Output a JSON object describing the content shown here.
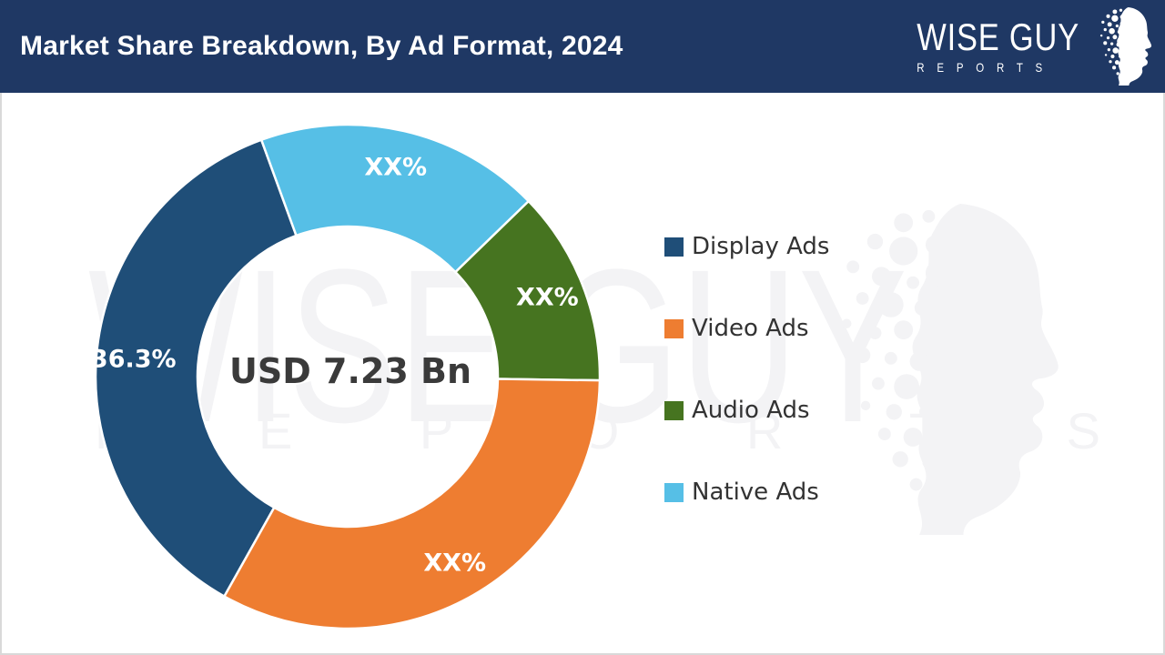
{
  "header": {
    "title": "Market Share Breakdown, By Ad Format, 2024",
    "logo": {
      "line1": "WISE GUY",
      "line2": "R E P O R T S"
    }
  },
  "watermark": {
    "line1": "WISE GUY",
    "line2": "R E P O R T S"
  },
  "palette": {
    "header_bg": "#1F3864",
    "display": "#1F4E78",
    "video": "#EE7D31",
    "audio": "#467420",
    "native": "#56BFE6",
    "slice_label_text": "#FFFFFF",
    "center_text": "#3A3A3A",
    "legend_text": "#333333",
    "watermark": "#F3F3F5",
    "page_border": "#D9D9D9"
  },
  "chart_data": {
    "type": "donut",
    "title": "Market Share Breakdown, By Ad Format, 2024",
    "center_label": "USD 7.23 Bn",
    "start_angle_deg": 209.3,
    "clockwise": true,
    "segments": [
      {
        "name": "Display Ads",
        "value_pct": 36.3,
        "label": "36.3%",
        "color_key": "display"
      },
      {
        "name": "Native Ads",
        "value_pct": 18.3,
        "label": "XX%",
        "color_key": "native"
      },
      {
        "name": "Audio Ads",
        "value_pct": 12.5,
        "label": "XX%",
        "color_key": "audio"
      },
      {
        "name": "Video Ads",
        "value_pct": 32.9,
        "label": "XX%",
        "color_key": "video"
      }
    ],
    "legend": {
      "position": "right",
      "items": [
        {
          "label": "Display Ads",
          "color_key": "display"
        },
        {
          "label": "Video Ads",
          "color_key": "video"
        },
        {
          "label": "Audio Ads",
          "color_key": "audio"
        },
        {
          "label": "Native Ads",
          "color_key": "native"
        }
      ]
    }
  }
}
